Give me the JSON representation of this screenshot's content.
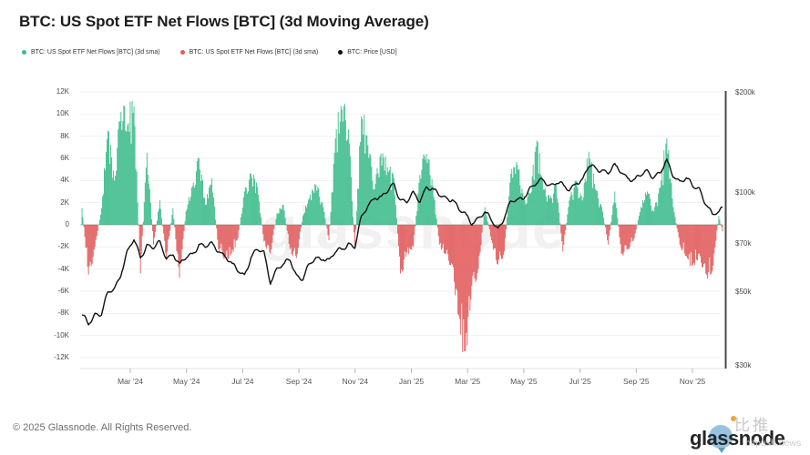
{
  "header": {
    "title": "BTC: US Spot ETF Net Flows [BTC] (3d Moving Average)"
  },
  "legend": {
    "items": [
      {
        "label": "BTC: US Spot ETF Net Flows [BTC] (3d sma)",
        "color": "#3fbc8d"
      },
      {
        "label": "BTC: US Spot ETF Net Flows [BTC] (3d sma)",
        "color": "#e25c5c"
      },
      {
        "label": "BTC: Price [USD]",
        "color": "#111111"
      }
    ]
  },
  "chart": {
    "watermark": "glassnode"
  },
  "chart_data": {
    "type": "bar+line",
    "title": "BTC: US Spot ETF Net Flows [BTC] (3d Moving Average)",
    "grid": "horizontal-light",
    "legend_position": "top-left",
    "x_axis": {
      "tick_labels": [
        "Mar '24",
        "May '24",
        "Jul '24",
        "Sep '24",
        "Nov '24",
        "Jan '25",
        "Mar '25",
        "May '25",
        "Jul '25",
        "Sep '25",
        "Nov '25"
      ]
    },
    "left_y_axis": {
      "tick_labels": [
        "12K",
        "10K",
        "8K",
        "6K",
        "4K",
        "2K",
        "0",
        "-2K",
        "-4K",
        "-6K",
        "-8K",
        "-10K",
        "-12K"
      ],
      "tick_values_kbtc": [
        12,
        10,
        8,
        6,
        4,
        2,
        0,
        -2,
        -4,
        -6,
        -8,
        -10,
        -12
      ],
      "min": -12000,
      "max": 12000,
      "scale": "linear"
    },
    "right_y_axis": {
      "tick_labels": [
        "$200k",
        "$100k",
        "$70k",
        "$50k",
        "$30k"
      ],
      "tick_values_usd_k": [
        200,
        100,
        70,
        50,
        30
      ],
      "min": 30000,
      "max": 200000,
      "scale": "log"
    },
    "series": [
      {
        "name": "BTC: US Spot ETF Net Flows [BTC] (3d sma)",
        "type": "bar",
        "axis": "left",
        "unit": "thousand BTC",
        "color_positive": "#3fbc8d",
        "color_negative": "#e25c5c"
      },
      {
        "name": "BTC: Price [USD]",
        "type": "line",
        "axis": "right",
        "unit": "thousand USD",
        "color": "#111111"
      }
    ],
    "sampling_note": "weekly values read from chart pixels",
    "dates": [
      "2024-01-15",
      "2024-01-22",
      "2024-01-29",
      "2024-02-05",
      "2024-02-12",
      "2024-02-19",
      "2024-02-26",
      "2024-03-04",
      "2024-03-11",
      "2024-03-18",
      "2024-03-25",
      "2024-04-01",
      "2024-04-08",
      "2024-04-15",
      "2024-04-22",
      "2024-04-29",
      "2024-05-06",
      "2024-05-13",
      "2024-05-20",
      "2024-05-27",
      "2024-06-03",
      "2024-06-10",
      "2024-06-17",
      "2024-06-24",
      "2024-07-01",
      "2024-07-08",
      "2024-07-15",
      "2024-07-22",
      "2024-07-29",
      "2024-08-05",
      "2024-08-12",
      "2024-08-19",
      "2024-08-26",
      "2024-09-02",
      "2024-09-09",
      "2024-09-16",
      "2024-09-23",
      "2024-09-30",
      "2024-10-07",
      "2024-10-14",
      "2024-10-21",
      "2024-10-28",
      "2024-11-04",
      "2024-11-11",
      "2024-11-18",
      "2024-11-25",
      "2024-12-02",
      "2024-12-09",
      "2024-12-16",
      "2024-12-23",
      "2024-12-30",
      "2025-01-06",
      "2025-01-13",
      "2025-01-20",
      "2025-01-27",
      "2025-02-03",
      "2025-02-10",
      "2025-02-17",
      "2025-02-24",
      "2025-03-03",
      "2025-03-10",
      "2025-03-17",
      "2025-03-24",
      "2025-03-31",
      "2025-04-07",
      "2025-04-14",
      "2025-04-21",
      "2025-04-28",
      "2025-05-05",
      "2025-05-12",
      "2025-05-19",
      "2025-05-26",
      "2025-06-02",
      "2025-06-09",
      "2025-06-16",
      "2025-06-23",
      "2025-06-30",
      "2025-07-07",
      "2025-07-14",
      "2025-07-21",
      "2025-07-28",
      "2025-08-04",
      "2025-08-11",
      "2025-08-18",
      "2025-08-25",
      "2025-09-01",
      "2025-09-08",
      "2025-09-15",
      "2025-09-22",
      "2025-09-29",
      "2025-10-06",
      "2025-10-13",
      "2025-10-20",
      "2025-10-27",
      "2025-11-03",
      "2025-11-10",
      "2025-11-17",
      "2025-11-24",
      "2025-12-01",
      "2025-12-05"
    ],
    "netflow_3d_sma_kbtc": [
      1.5,
      -4.5,
      -2.0,
      1.5,
      8.5,
      4.0,
      10.2,
      9.0,
      10.7,
      -4.4,
      6.5,
      -1.8,
      2.2,
      -3.2,
      1.5,
      -4.8,
      1.2,
      3.5,
      6.0,
      1.8,
      4.2,
      -2.2,
      -3.0,
      -2.6,
      -1.2,
      3.0,
      4.6,
      3.4,
      -1.5,
      -2.6,
      1.0,
      1.8,
      -2.2,
      -3.0,
      0.8,
      2.4,
      3.6,
      2.0,
      -1.4,
      7.8,
      10.4,
      8.6,
      -2.2,
      9.8,
      7.2,
      3.2,
      6.4,
      5.2,
      4.2,
      -4.4,
      -2.5,
      -2.0,
      4.5,
      6.4,
      3.5,
      -1.8,
      -2.6,
      -3.6,
      -8.2,
      -11.4,
      -5.5,
      -4.0,
      1.6,
      -1.4,
      -3.6,
      -2.4,
      4.6,
      5.4,
      2.2,
      2.8,
      7.6,
      3.2,
      2.4,
      3.6,
      -2.4,
      2.2,
      4.0,
      2.2,
      6.6,
      3.2,
      1.6,
      -1.8,
      3.0,
      -2.6,
      -2.2,
      -1.2,
      1.6,
      3.0,
      1.2,
      3.4,
      7.8,
      1.6,
      -1.8,
      -2.8,
      -3.6,
      -2.6,
      -4.4,
      -4.2,
      0.8,
      -0.6
    ],
    "price_usd_k": [
      42.8,
      40.2,
      43.2,
      43.0,
      49.8,
      51.5,
      57.0,
      66.5,
      72.0,
      63.8,
      69.8,
      68.0,
      70.5,
      63.5,
      65.5,
      60.5,
      63.5,
      65.5,
      70.0,
      68.5,
      70.0,
      67.0,
      64.5,
      61.0,
      58.0,
      56.5,
      64.0,
      67.0,
      66.0,
      53.8,
      59.0,
      60.5,
      62.8,
      56.5,
      55.0,
      60.5,
      63.5,
      63.5,
      62.5,
      66.0,
      67.5,
      70.5,
      68.5,
      84.0,
      91.5,
      97.0,
      96.5,
      100.5,
      106.5,
      95.5,
      93.5,
      99.5,
      94.5,
      104.5,
      102.0,
      98.0,
      96.5,
      96.0,
      88.5,
      86.0,
      81.0,
      84.0,
      87.0,
      82.5,
      78.0,
      84.5,
      93.5,
      95.0,
      97.0,
      103.5,
      106.5,
      109.0,
      105.5,
      107.5,
      105.0,
      101.5,
      107.5,
      109.0,
      120.0,
      118.5,
      117.5,
      114.5,
      120.5,
      115.5,
      111.0,
      109.0,
      112.5,
      116.5,
      112.0,
      114.5,
      124.5,
      112.5,
      108.5,
      110.5,
      104.0,
      103.0,
      93.0,
      85.5,
      87.0,
      90.0
    ]
  },
  "footer": {
    "copyright": "© 2025 Glassnode. All Rights Reserved.",
    "logo_text": "glassnode",
    "overlay_watermark": {
      "cn": "比推",
      "en": "bitpush.news"
    }
  }
}
